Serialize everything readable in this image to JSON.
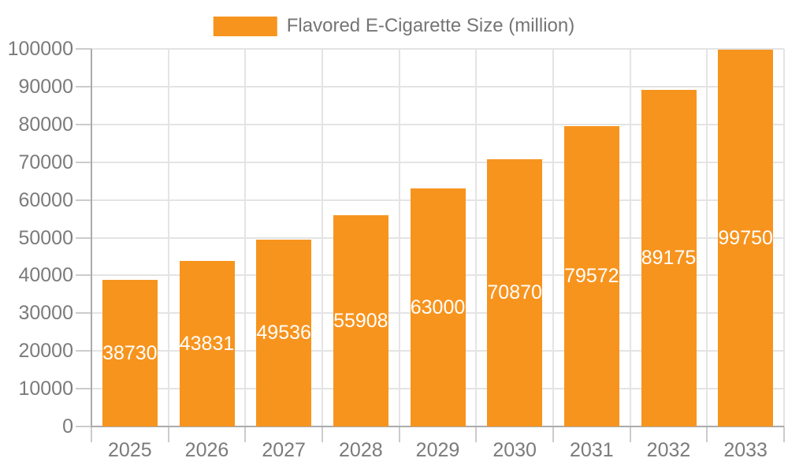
{
  "chart_data": {
    "type": "bar",
    "title": "",
    "series_name": "Flavored E-Cigarette Size (million)",
    "categories": [
      "2025",
      "2026",
      "2027",
      "2028",
      "2029",
      "2030",
      "2031",
      "2032",
      "2033"
    ],
    "values": [
      38730,
      43831,
      49536,
      55908,
      63000,
      70870,
      79572,
      89175,
      99750
    ],
    "bar_value_labels": [
      "38730",
      "43831",
      "49536",
      "55908",
      "63000",
      "70870",
      "79572",
      "89175",
      "99750"
    ],
    "xlabel": "",
    "ylabel": "",
    "ylim": [
      0,
      100000
    ],
    "y_ticks": [
      0,
      10000,
      20000,
      30000,
      40000,
      50000,
      60000,
      70000,
      80000,
      90000,
      100000
    ],
    "y_tick_labels": [
      "0",
      "10000",
      "20000",
      "30000",
      "40000",
      "50000",
      "60000",
      "70000",
      "80000",
      "90000",
      "100000"
    ],
    "grid": "on",
    "legend_position": "top-center",
    "colors": {
      "bar": "#f7941e",
      "bar_label_text": "#ffffff",
      "axis_text": "#7b7b7b",
      "legend_text": "#757575",
      "gridline": "#e4e4e4",
      "tick": "#cccccc",
      "axis_line": "#ababab",
      "background": "#ffffff"
    }
  }
}
